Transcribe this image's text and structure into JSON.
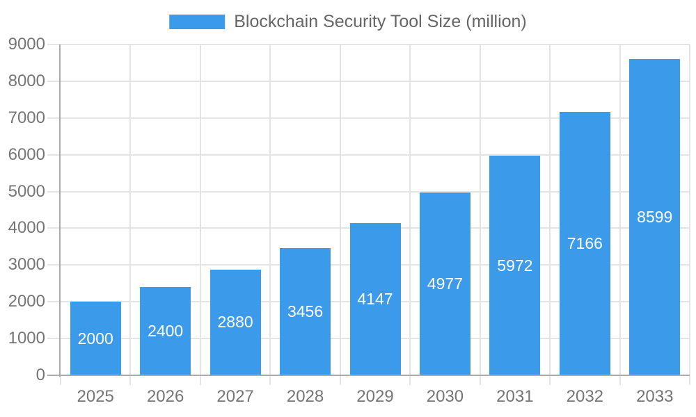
{
  "chart_data": {
    "type": "bar",
    "title": "Blockchain Security Tool Size (million)",
    "legend": {
      "position": "top",
      "label": "Blockchain Security Tool Size (million)"
    },
    "categories": [
      "2025",
      "2026",
      "2027",
      "2028",
      "2029",
      "2030",
      "2031",
      "2032",
      "2033"
    ],
    "series": [
      {
        "name": "Blockchain Security Tool Size (million)",
        "values": [
          2000,
          2400,
          2880,
          3456,
          4147,
          4977,
          5972,
          7166,
          8599
        ]
      }
    ],
    "value_labels_position": "inside-center",
    "xlabel": "",
    "ylabel": "",
    "ylim": [
      0,
      9000
    ],
    "y_ticks": [
      0,
      1000,
      2000,
      3000,
      4000,
      5000,
      6000,
      7000,
      8000,
      9000
    ],
    "grid": true,
    "colors": {
      "bar": "#3B9AEA",
      "bar_label": "#FFFFFF",
      "axis_text": "#757575",
      "legend_text": "#666666",
      "gridline": "#E4E4E4",
      "axis_line": "#ABABAB",
      "background": "#FFFFFF"
    }
  }
}
